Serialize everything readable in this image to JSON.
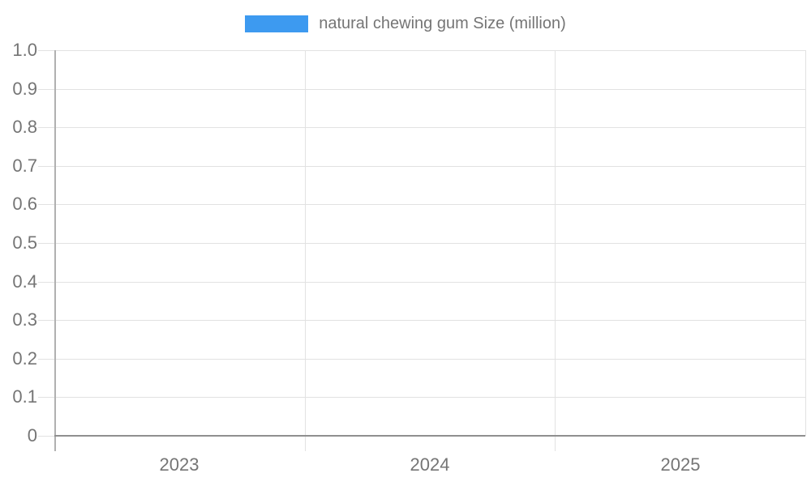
{
  "legend": {
    "label": "natural chewing gum Size (million)",
    "swatch_color": "#3d9af0"
  },
  "chart_data": {
    "type": "bar",
    "title": "",
    "xlabel": "",
    "ylabel": "",
    "categories": [
      "2023",
      "2024",
      "2025"
    ],
    "series": [
      {
        "name": "natural chewing gum Size (million)",
        "color": "#3d9af0",
        "values": [
          null,
          null,
          null
        ]
      }
    ],
    "note": "plot area is empty - no bars rendered",
    "ylim": [
      0,
      1
    ],
    "y_ticks": [
      "1.0",
      "0.9",
      "0.8",
      "0.7",
      "0.6",
      "0.5",
      "0.4",
      "0.3",
      "0.2",
      "0.1",
      "0"
    ],
    "grid": true,
    "legend_position": "top-center"
  },
  "colors": {
    "gridline": "#e2e2e2",
    "y_axis": "#b0b0b0",
    "x_axis": "#8f8f8f",
    "tick_text": "#757575",
    "background": "#ffffff"
  }
}
